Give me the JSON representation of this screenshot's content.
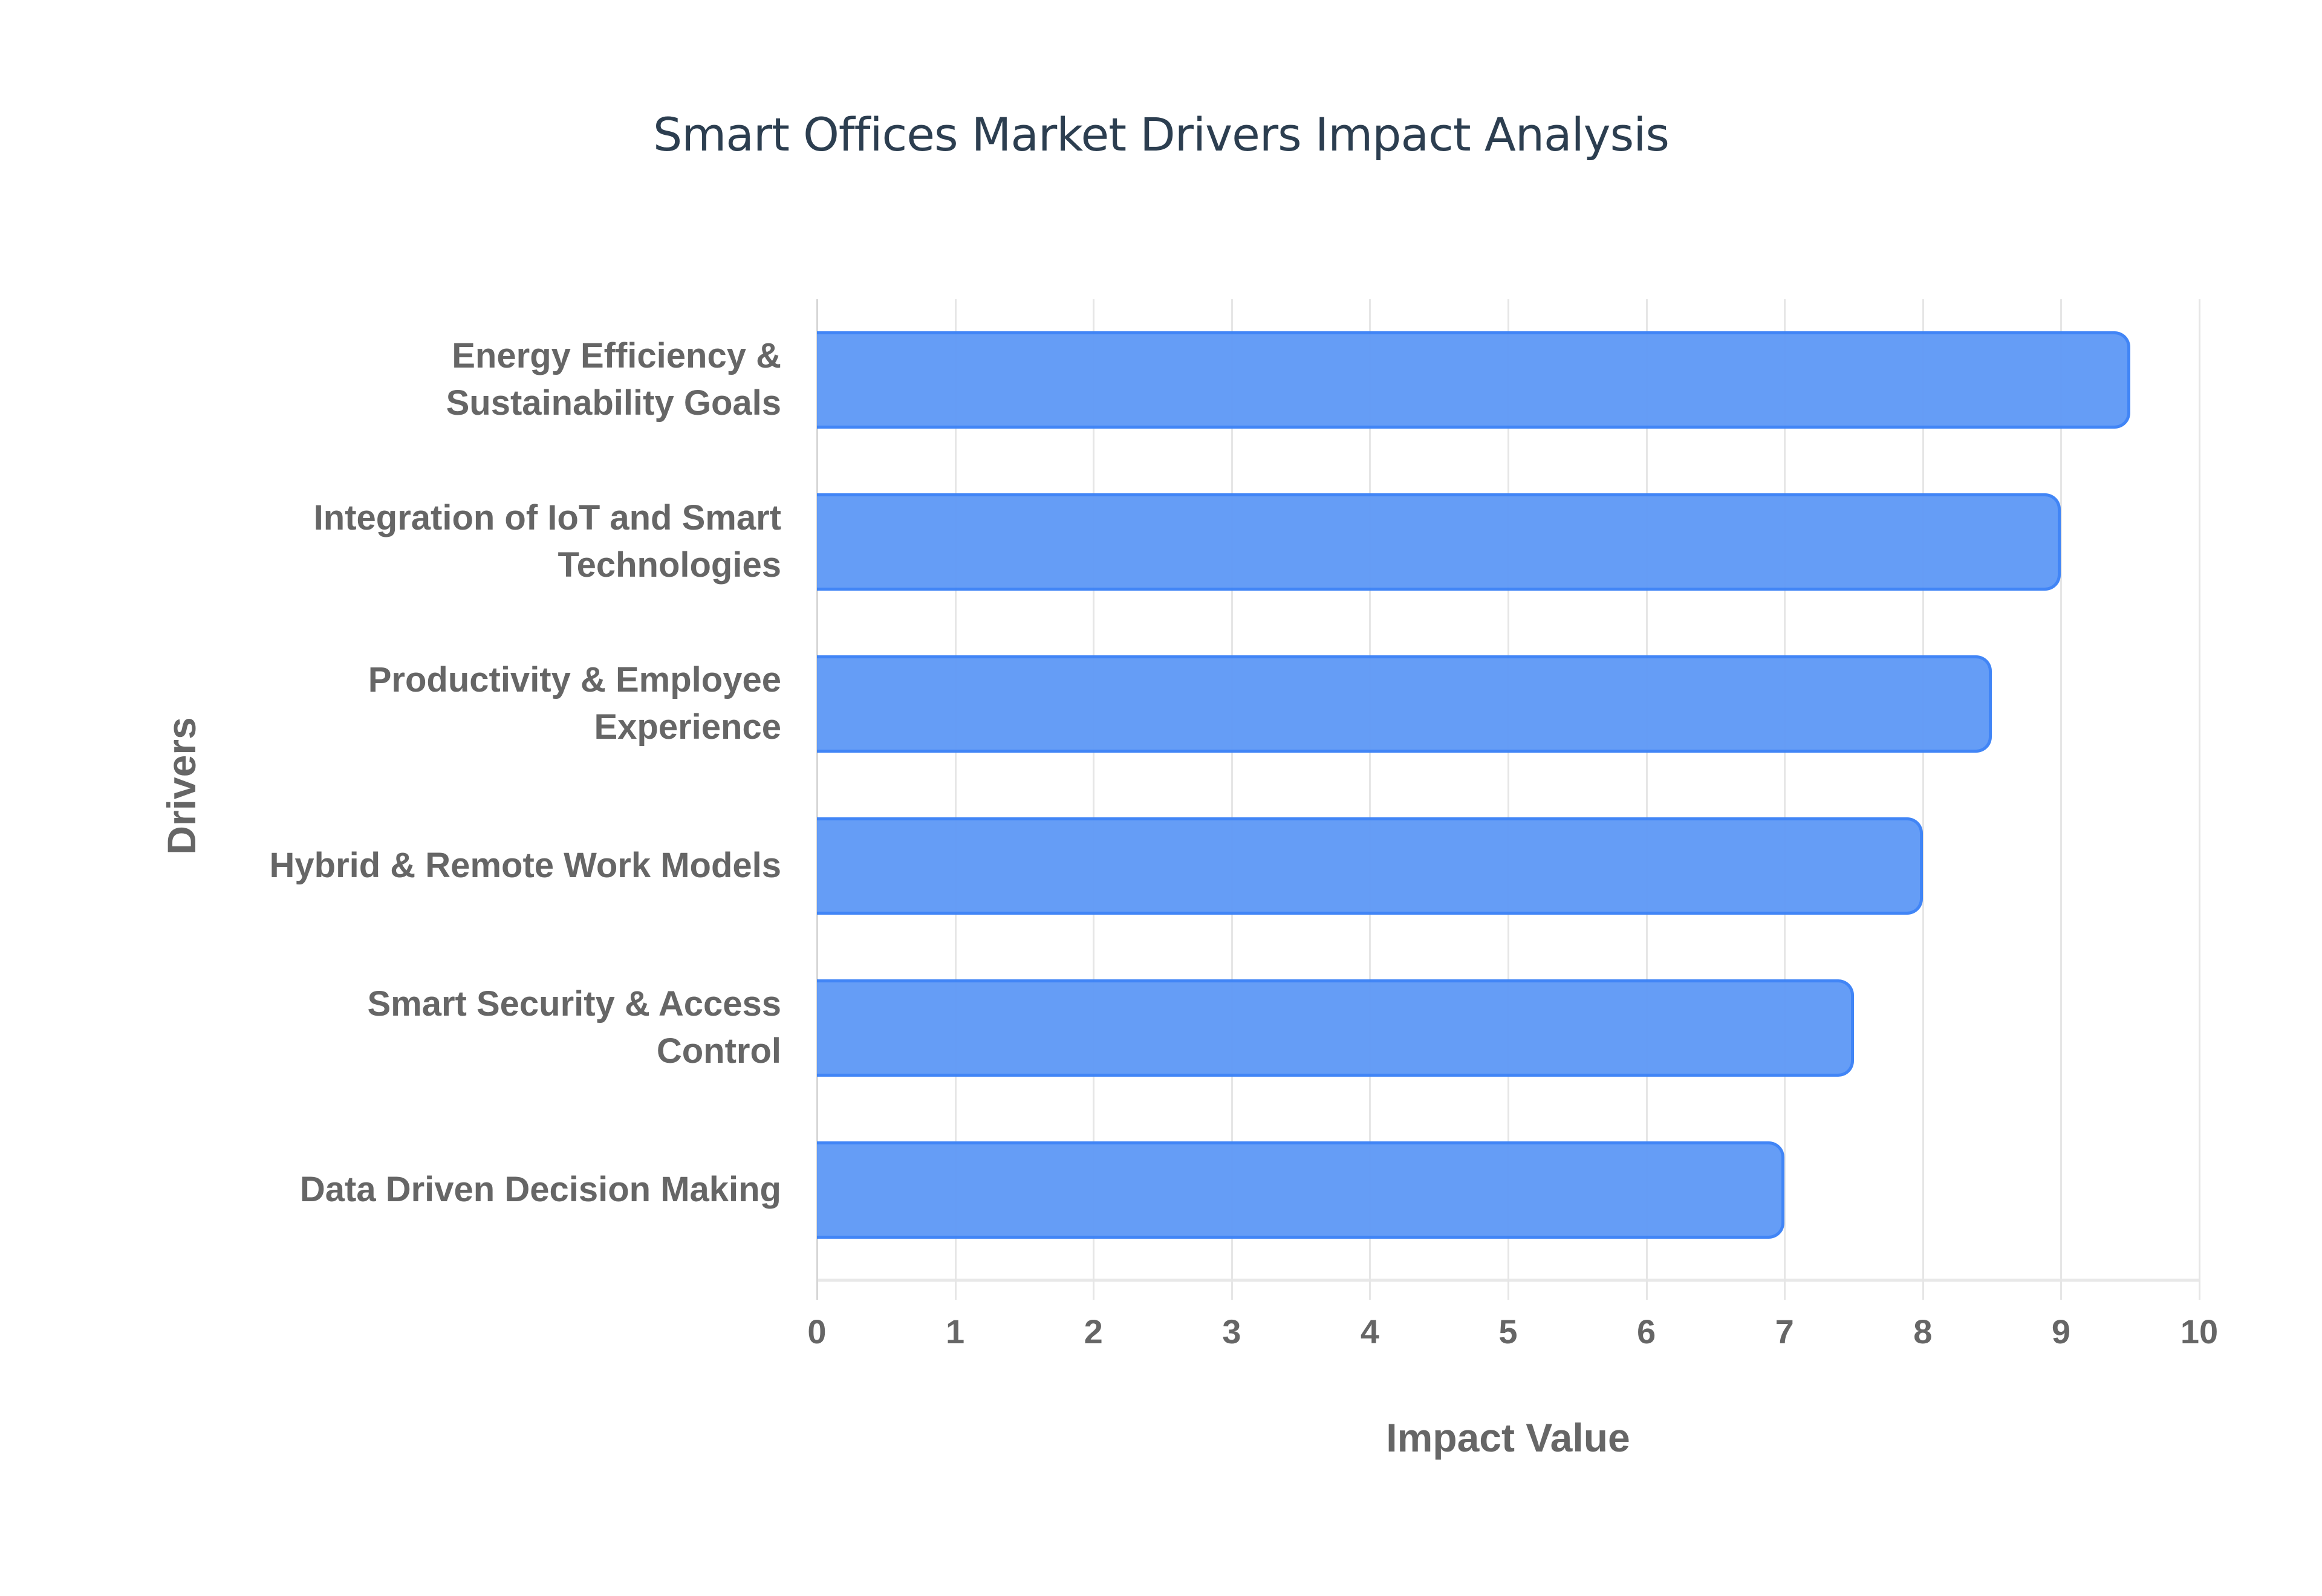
{
  "chart_data": {
    "type": "bar",
    "orientation": "horizontal",
    "title": "Smart Offices Market Drivers Impact Analysis",
    "xlabel": "Impact Value",
    "ylabel": "Drivers",
    "xlim": [
      0,
      10
    ],
    "xticks": [
      "0",
      "1",
      "2",
      "3",
      "4",
      "5",
      "6",
      "7",
      "8",
      "9",
      "10"
    ],
    "grid": true,
    "legend": null,
    "categories": [
      "Energy Efficiency & Sustainability Goals",
      "Integration of IoT and Smart Technologies",
      "Productivity & Employee Experience",
      "Hybrid & Remote Work Models",
      "Smart Security & Access Control",
      "Data Driven Decision Making"
    ],
    "values": [
      9.5,
      9,
      8.5,
      8,
      7.5,
      7
    ],
    "colors": {
      "bar_fill": "#619af6",
      "bar_border": "#3b82f6",
      "title": "#2c3e50",
      "axis_text": "#666666",
      "grid": "#e6e6e6"
    }
  },
  "labels": {
    "row0": {
      "line1": "Energy Efficiency &",
      "line2": "Sustainability Goals"
    },
    "row1": {
      "line1": "Integration of IoT and Smart",
      "line2": "Technologies"
    },
    "row2": {
      "line1": "Productivity & Employee",
      "line2": "Experience"
    },
    "row3": {
      "line1": "Hybrid & Remote Work Models",
      "line2": ""
    },
    "row4": {
      "line1": "Smart Security & Access",
      "line2": "Control"
    },
    "row5": {
      "line1": "Data Driven Decision Making",
      "line2": ""
    }
  }
}
